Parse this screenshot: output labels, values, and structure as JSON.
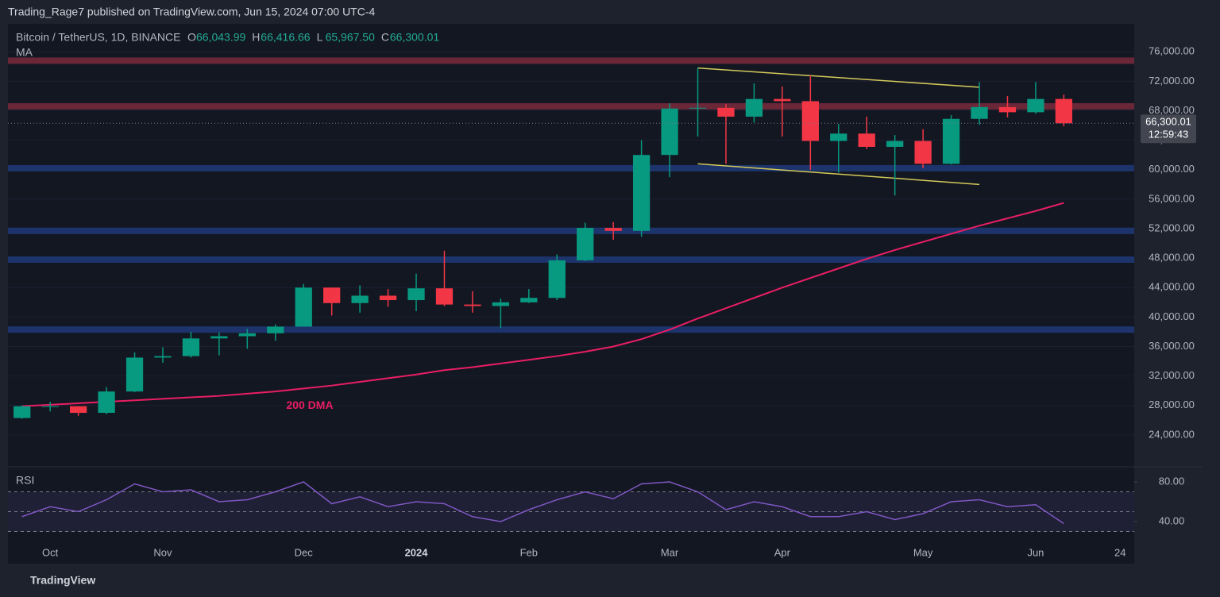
{
  "page": {
    "byline": "Trading_Rage7 published on TradingView.com, Jun 15, 2024 07:00 UTC-4",
    "brand": "TradingView"
  },
  "chart_data": [
    {
      "type": "candlestick",
      "title": "Bitcoin / TetherUS, 1D, BINANCE",
      "header": {
        "o": "O",
        "open": "66,043.99",
        "h": "H",
        "high": "66,416.66",
        "l": "L",
        "low": "65,967.50",
        "c": "C",
        "close": "66,300.01"
      },
      "indicator": "MA",
      "categories": [
        null,
        "Oct",
        null,
        null,
        null,
        "Nov",
        null,
        null,
        null,
        null,
        "Dec",
        null,
        null,
        null,
        "2024",
        null,
        null,
        null,
        "Feb",
        null,
        null,
        null,
        null,
        "Mar",
        null,
        null,
        null,
        "Apr",
        null,
        null,
        null,
        null,
        "May",
        null,
        null,
        null,
        "Jun",
        null,
        null,
        "24"
      ],
      "open": [
        26300,
        27900,
        27900,
        27000,
        29900,
        34500,
        34700,
        37100,
        37400,
        37800,
        38700,
        44000,
        41900,
        42900,
        42300,
        43900,
        41700,
        41500,
        42000,
        42600,
        47700,
        52100,
        51700,
        62000,
        68300,
        68400,
        67200,
        69600,
        69300,
        63900,
        64900,
        63100,
        63900,
        60800,
        66900,
        68500,
        67800,
        69600,
        null,
        null
      ],
      "high": [
        28000,
        28500,
        27900,
        30500,
        35200,
        35900,
        38000,
        37900,
        38400,
        39000,
        44500,
        44000,
        44300,
        43800,
        45900,
        49000,
        43500,
        42500,
        43800,
        48500,
        52800,
        52900,
        64000,
        69000,
        73800,
        68900,
        71700,
        71300,
        72800,
        66200,
        67200,
        64700,
        65500,
        67400,
        71900,
        70000,
        71900,
        70200,
        null,
        null
      ],
      "low": [
        26200,
        27200,
        26600,
        26800,
        29800,
        33800,
        34500,
        34800,
        35700,
        36800,
        38700,
        40200,
        40600,
        41400,
        40800,
        41500,
        40600,
        38500,
        41900,
        42300,
        47600,
        50500,
        50900,
        59000,
        64500,
        60800,
        66400,
        64500,
        60000,
        59600,
        62800,
        56500,
        60200,
        60700,
        66100,
        67100,
        67600,
        65900,
        null,
        null
      ],
      "close": [
        27900,
        27900,
        27000,
        29900,
        34500,
        34700,
        37100,
        37400,
        37800,
        38700,
        44000,
        41900,
        42900,
        42300,
        43900,
        41700,
        41500,
        42000,
        42600,
        47700,
        52100,
        51700,
        62000,
        68300,
        68400,
        67200,
        69600,
        69300,
        63900,
        64900,
        63100,
        63900,
        60800,
        66900,
        68500,
        67800,
        69600,
        66300,
        null,
        null
      ],
      "up_color": "#089981",
      "down_color": "#f23645",
      "series": [
        {
          "name": "200 DMA",
          "color": "#e91e63",
          "values": [
            27900,
            28100,
            28300,
            28500,
            28700,
            28900,
            29100,
            29300,
            29600,
            29900,
            30300,
            30700,
            31200,
            31700,
            32200,
            32800,
            33200,
            33700,
            34200,
            34700,
            35300,
            36000,
            37000,
            38300,
            39800,
            41200,
            42600,
            44000,
            45300,
            46600,
            47900,
            49100,
            50200,
            51300,
            52400,
            53400,
            54400,
            55500,
            null,
            null
          ]
        }
      ],
      "trendlines": [
        {
          "color": "#d4c95a",
          "values": [
            null,
            null,
            null,
            null,
            null,
            null,
            null,
            null,
            null,
            null,
            null,
            null,
            null,
            null,
            null,
            null,
            null,
            null,
            null,
            null,
            null,
            null,
            null,
            null,
            73800,
            null,
            null,
            null,
            null,
            null,
            null,
            null,
            null,
            null,
            71200,
            null,
            null,
            null,
            null,
            null
          ]
        },
        {
          "color": "#d4c95a",
          "values": [
            null,
            null,
            null,
            null,
            null,
            null,
            null,
            null,
            null,
            null,
            null,
            null,
            null,
            null,
            null,
            null,
            null,
            null,
            null,
            null,
            null,
            null,
            null,
            null,
            60800,
            null,
            null,
            null,
            null,
            null,
            null,
            null,
            null,
            null,
            58000,
            null,
            null,
            null,
            null,
            null
          ]
        }
      ],
      "levels": [
        {
          "value": 74800,
          "color": "#7a2a3c"
        },
        {
          "value": 68600,
          "color": "#7a2a3c"
        },
        {
          "value": 60200,
          "color": "#1f3a78"
        },
        {
          "value": 51700,
          "color": "#1f3a78"
        },
        {
          "value": 47800,
          "color": "#1f3a78"
        },
        {
          "value": 38300,
          "color": "#1f3a78"
        }
      ],
      "last_price": {
        "label": "66,300.01",
        "countdown": "12:59:43"
      },
      "ylim": [
        20000,
        79800
      ],
      "yticks": [
        {
          "value": 24000,
          "label": "24,000.00"
        },
        {
          "value": 28000,
          "label": "28,000.00"
        },
        {
          "value": 32000,
          "label": "32,000.00"
        },
        {
          "value": 36000,
          "label": "36,000.00"
        },
        {
          "value": 40000,
          "label": "40,000.00"
        },
        {
          "value": 44000,
          "label": "44,000.00"
        },
        {
          "value": 48000,
          "label": "48,000.00"
        },
        {
          "value": 52000,
          "label": "52,000.00"
        },
        {
          "value": 56000,
          "label": "56,000.00"
        },
        {
          "value": 60000,
          "label": "60,000.00"
        },
        {
          "value": 64000,
          "label": "64,000.00"
        },
        {
          "value": 68000,
          "label": "68,000.00"
        },
        {
          "value": 72000,
          "label": "72,000.00"
        },
        {
          "value": 76000,
          "label": "76,000.00"
        }
      ]
    },
    {
      "type": "line",
      "title": "RSI",
      "color": "#7e57c2",
      "values": [
        45,
        55,
        50,
        62,
        78,
        70,
        72,
        60,
        62,
        70,
        80,
        58,
        65,
        55,
        60,
        58,
        45,
        40,
        52,
        62,
        70,
        63,
        78,
        80,
        70,
        52,
        60,
        55,
        45,
        45,
        50,
        42,
        48,
        60,
        62,
        55,
        57,
        38,
        null,
        null
      ],
      "bands": [
        70,
        50,
        30
      ],
      "ylim": [
        21.6,
        93.6
      ],
      "yticks": [
        {
          "value": 40,
          "label": "40.00"
        },
        {
          "value": 80,
          "label": "80.00"
        }
      ]
    }
  ]
}
